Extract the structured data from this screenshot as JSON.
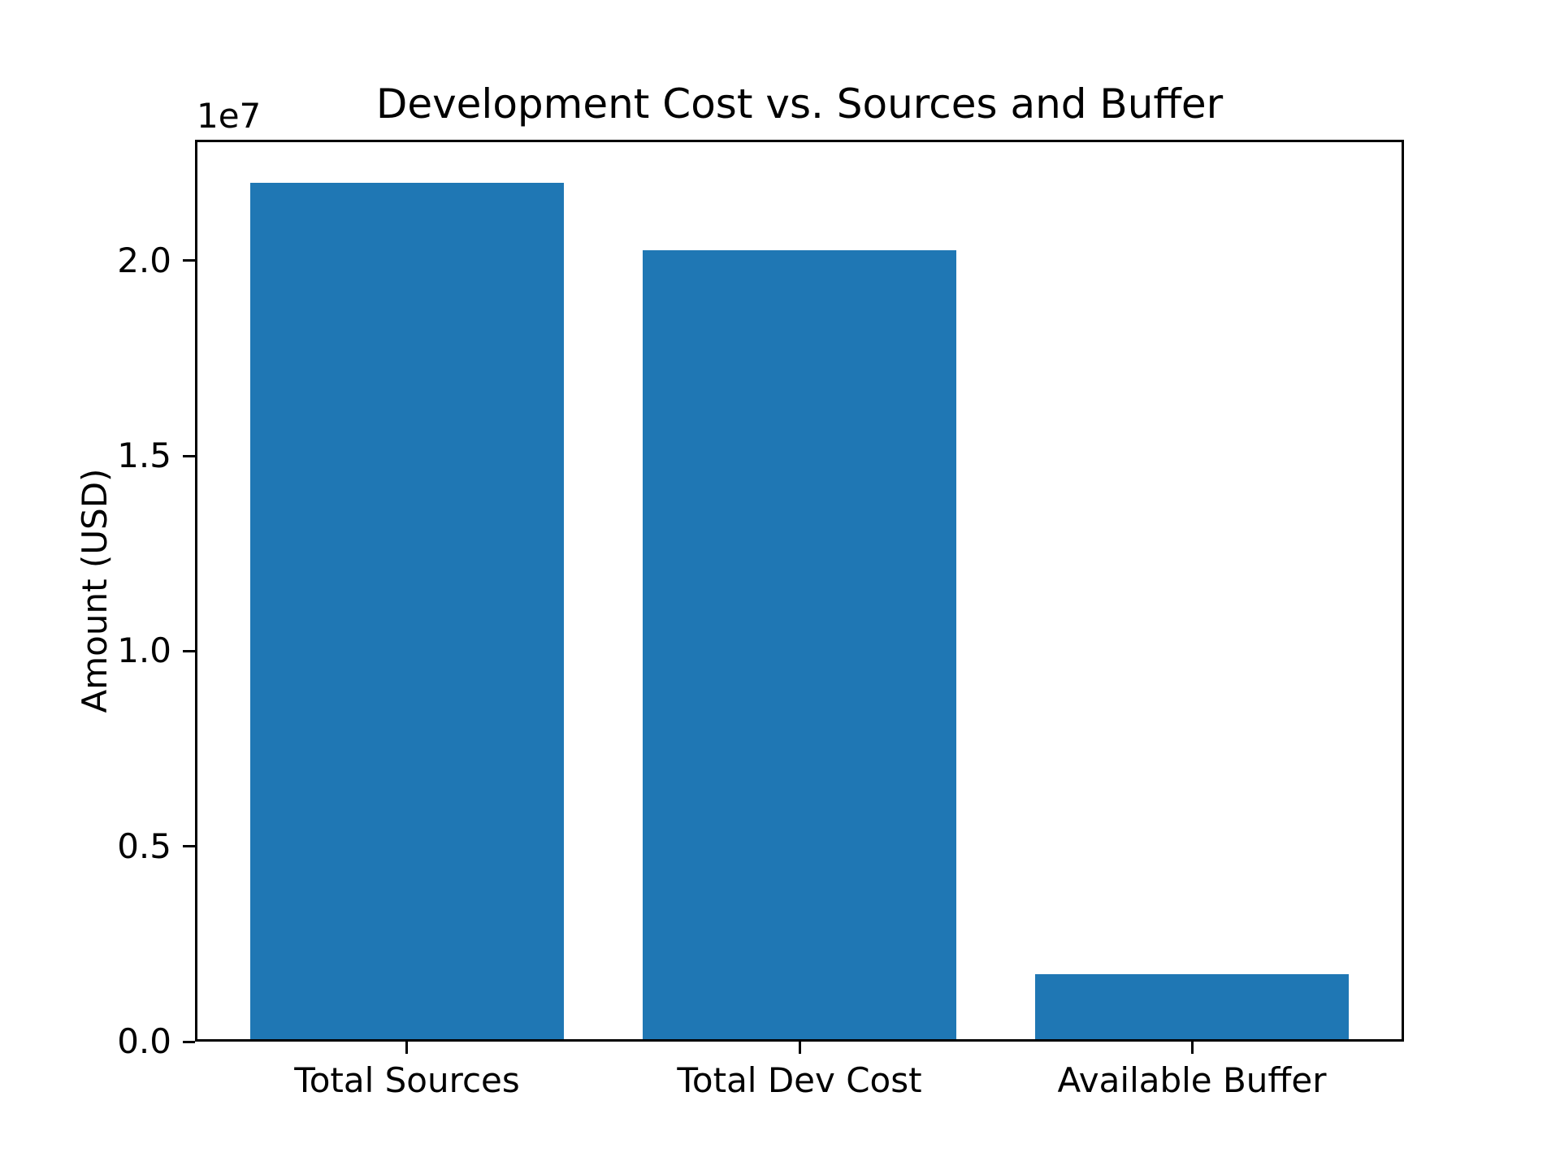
{
  "chart_data": {
    "type": "bar",
    "title": "Development Cost vs. Sources and Buffer",
    "xlabel": "",
    "ylabel": "Amount (USD)",
    "y_offset_label": "1e7",
    "categories": [
      "Total Sources",
      "Total Dev Cost",
      "Available Buffer"
    ],
    "values": [
      22000000,
      20280000,
      1720000
    ],
    "ylim": [
      0,
      23100000
    ],
    "yticks": [
      0,
      5000000,
      10000000,
      15000000,
      20000000
    ],
    "ytick_labels": [
      "0.0",
      "0.5",
      "1.0",
      "1.5",
      "2.0"
    ],
    "bar_color": "#1f77b4",
    "axis_color": "#000000",
    "background_color": "#ffffff",
    "grid": false,
    "legend_position": "none",
    "bar_width_fraction": 0.8,
    "x_margin_fraction": 0.05
  }
}
